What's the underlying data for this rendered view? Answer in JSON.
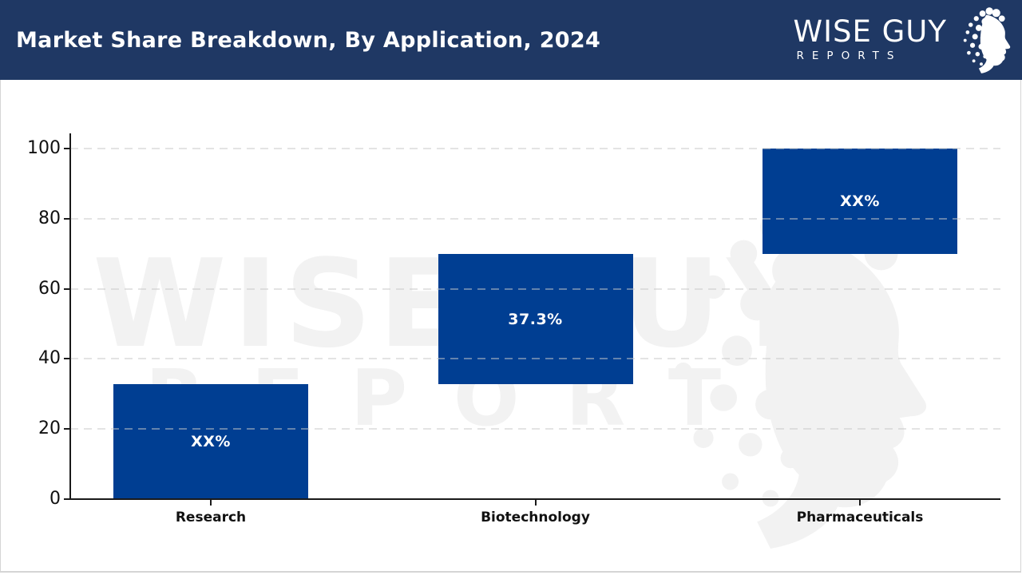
{
  "header": {
    "title": "Market Share Breakdown, By Application, 2024",
    "logo": {
      "line1": "WISE GUY",
      "line2": "REPORTS"
    }
  },
  "watermark": {
    "line1": "WISE GUY",
    "line2": "REPORTS"
  },
  "chart_data": {
    "type": "bar",
    "subtype": "floating-segment-waterfall",
    "title": "Market Share Breakdown, By Application, 2024",
    "categories": [
      "Research",
      "Biotechnology",
      "Pharmaceuticals"
    ],
    "segments": [
      {
        "category": "Research",
        "from": 0,
        "to": 32.7,
        "label": "XX%"
      },
      {
        "category": "Biotechnology",
        "from": 32.7,
        "to": 70,
        "label": "37.3%"
      },
      {
        "category": "Pharmaceuticals",
        "from": 70,
        "to": 100,
        "label": "XX%"
      }
    ],
    "xlabel": "",
    "ylabel": "",
    "ylim": [
      0,
      104
    ],
    "yticks": [
      0,
      20,
      40,
      60,
      80,
      100
    ],
    "grid": {
      "horizontal": true,
      "style": "dashed",
      "drawn_over_bars": true
    },
    "legend": null,
    "colors": {
      "bar": "#003e92",
      "bar_label": "#ffffff",
      "grid": "#c8c8c8",
      "axis": "#1a1a1a",
      "tick_label": "#111111",
      "header_bg": "#1f3864",
      "header_text": "#ffffff",
      "watermark": "#f2f2f2"
    }
  }
}
